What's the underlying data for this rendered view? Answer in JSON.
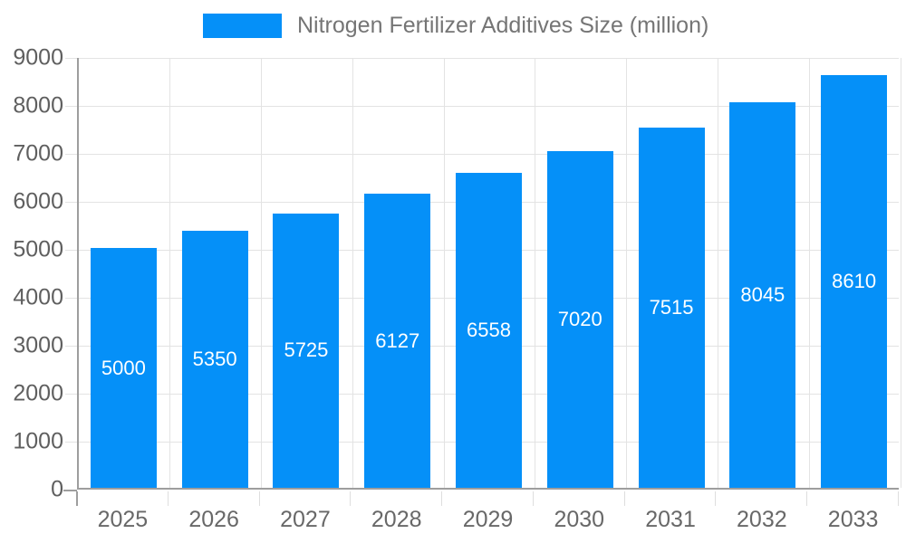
{
  "legend": {
    "label": "Nitrogen Fertilizer Additives Size (million)",
    "swatch_color": "#0590f8"
  },
  "chart_data": {
    "type": "bar",
    "title": "Nitrogen Fertilizer Additives Size (million)",
    "categories": [
      "2025",
      "2026",
      "2027",
      "2028",
      "2029",
      "2030",
      "2031",
      "2032",
      "2033"
    ],
    "series": [
      {
        "name": "Nitrogen Fertilizer Additives Size (million)",
        "values": [
          5000,
          5350,
          5725,
          6127,
          6558,
          7020,
          7515,
          8045,
          8610
        ]
      }
    ],
    "value_labels_shown": true,
    "xlabel": "",
    "ylabel": "",
    "ylim": [
      0,
      9000
    ],
    "ytick_step": 1000,
    "grid": true,
    "legend_position": "top",
    "bar_color": "#0590f8",
    "value_label_color": "#ffffff",
    "axis_color": "#9e9e9e",
    "grid_color": "#e3e3e3"
  }
}
